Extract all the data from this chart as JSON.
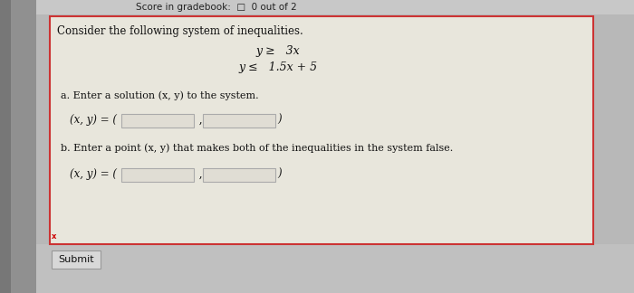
{
  "outer_bg": "#b8b8b8",
  "left_strip_color": "#888888",
  "header_bg": "#d0d0d0",
  "box_bg": "#e8e6dc",
  "box_border_color": "#cc3333",
  "title_text": "Consider the following system of inequalities.",
  "ineq1": "y ≥   3x",
  "ineq2": "y ≤   1.5x + 5",
  "part_a": "a. Enter a solution (x, y) to the system.",
  "part_b": "b. Enter a point (x, y) that makes both of the inequalities in the system false.",
  "label_xy": "(x, y) = (",
  "submit_text": "Submit",
  "input_box_color": "#e0ddd4",
  "input_box_border": "#aaaaaa",
  "text_color": "#111111"
}
